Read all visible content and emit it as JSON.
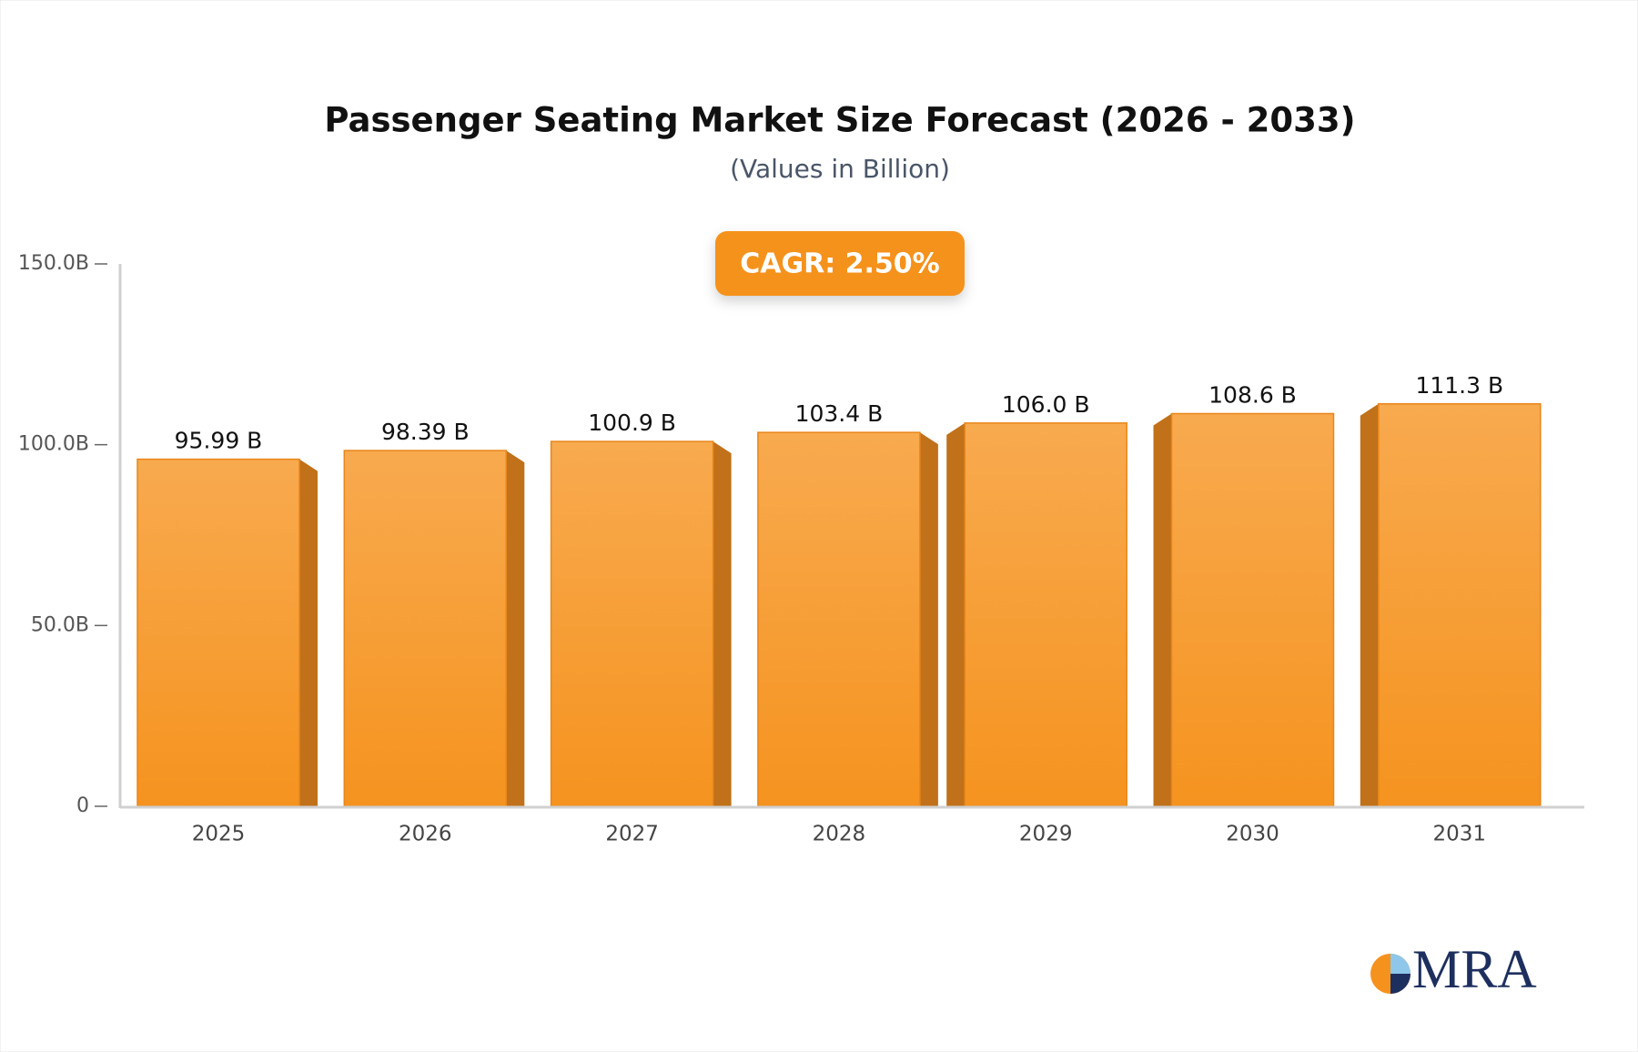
{
  "chart_data": {
    "type": "bar",
    "title": "Passenger Seating Market Size Forecast (2026 - 2033)",
    "subtitle": "(Values in Billion)",
    "annotation": "CAGR: 2.50%",
    "categories": [
      "2025",
      "2026",
      "2027",
      "2028",
      "2029",
      "2030",
      "2031"
    ],
    "values": [
      95.99,
      98.39,
      100.9,
      103.4,
      106.0,
      108.6,
      111.3
    ],
    "value_labels": [
      "95.99 B",
      "98.39 B",
      "100.9 B",
      "103.4 B",
      "106.0 B",
      "108.6 B",
      "111.3 B"
    ],
    "color": "#f5931f",
    "ylim": [
      0,
      150
    ],
    "yticks": [
      0,
      {
        "value": 50,
        "label": "50.0B"
      },
      {
        "value": 100,
        "label": "100.0B"
      },
      {
        "value": 150,
        "label": "150.0B"
      }
    ],
    "grid": false
  },
  "logo": {
    "text": "MRA"
  }
}
